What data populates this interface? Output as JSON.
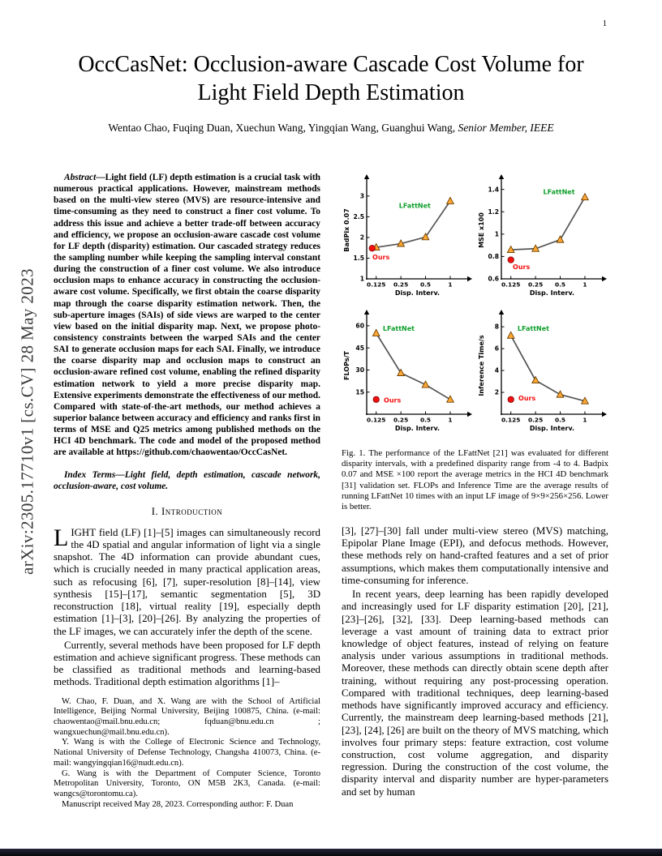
{
  "page_number": "1",
  "arxiv_label": "arXiv:2305.17710v1  [cs.CV]  28 May 2023",
  "header": {
    "title": "OccCasNet: Occlusion-aware Cascade Cost Volume for Light Field Depth Estimation",
    "authors": "Wentao Chao, Fuqing Duan, Xuechun Wang, Yingqian Wang, Guanghui Wang,",
    "authors_suffix": " Senior Member, IEEE"
  },
  "abstract": {
    "label": "Abstract",
    "text": "—Light field (LF) depth estimation is a crucial task with numerous practical applications. However, mainstream methods based on the multi-view stereo (MVS) are resource-intensive and time-consuming as they need to construct a finer cost volume. To address this issue and achieve a better trade-off between accuracy and efficiency, we propose an occlusion-aware cascade cost volume for LF depth (disparity) estimation. Our cascaded strategy reduces the sampling number while keeping the sampling interval constant during the construction of a finer cost volume. We also introduce occlusion maps to enhance accuracy in constructing the occlusion-aware cost volume. Specifically, we first obtain the coarse disparity map through the coarse disparity estimation network. Then, the sub-aperture images (SAIs) of side views are warped to the center view based on the initial disparity map. Next, we propose photo-consistency constraints between the warped SAIs and the center SAI to generate occlusion maps for each SAI. Finally, we introduce the coarse disparity map and occlusion maps to construct an occlusion-aware refined cost volume, enabling the refined disparity estimation network to yield a more precise disparity map. Extensive experiments demonstrate the effectiveness of our method. Compared with state-of-the-art methods, our method achieves a superior balance between accuracy and efficiency and ranks first in terms of MSE and Q25 metrics among published methods on the HCI 4D benchmark. The code and model of the proposed method are available at ",
    "link": "https://github.com/chaowentao/OccCasNet."
  },
  "index_terms": {
    "label": "Index Terms",
    "text": "—Light field, depth estimation, cascade network, occlusion-aware, cost volume."
  },
  "introduction": {
    "heading": "I. Introduction",
    "dropcap": "L",
    "para1": "IGHT field (LF) [1]–[5] images can simultaneously record the 4D spatial and angular information of light via a single snapshot. The 4D information can provide abundant cues, which is crucially needed in many practical application areas, such as refocusing [6], [7], super-resolution [8]–[14], view synthesis [15]–[17], semantic segmentation [5], 3D reconstruction [18], virtual reality [19], especially depth estimation [1]–[3], [20]–[26]. By analyzing the properties of the LF images, we can accurately infer the depth of the scene.",
    "para2": "Currently, several methods have been proposed for LF depth estimation and achieve significant progress. These methods can be classified as traditional methods and learning-based methods. Traditional depth estimation algorithms [1]–"
  },
  "right_column": {
    "para1": "[3], [27]–[30] fall under multi-view stereo (MVS) matching, Epipolar Plane Image (EPI), and defocus methods. However, these methods rely on hand-crafted features and a set of prior assumptions, which makes them computationally intensive and time-consuming for inference.",
    "para2": "In recent years, deep learning has been rapidly developed and increasingly used for LF disparity estimation [20], [21], [23]–[26], [32], [33]. Deep learning-based methods can leverage a vast amount of training data to extract prior knowledge of object features, instead of relying on feature analysis under various assumptions in traditional methods. Moreover, these methods can directly obtain scene depth after training, without requiring any post-processing operation. Compared with traditional techniques, deep learning-based methods have significantly improved accuracy and efficiency. Currently, the mainstream deep learning-based methods [21], [23], [24], [26] are built on the theory of MVS matching, which involves four primary steps: feature extraction, cost volume construction, cost volume aggregation, and disparity regression. During the construction of the cost volume, the disparity interval and disparity number are hyper-parameters and set by human"
  },
  "footnotes": [
    "W. Chao, F. Duan, and X. Wang are with the School of Artificial Intelligence, Beijing Normal University, Beijing 100875, China. (e-mail: chaowentao@mail.bnu.edu.cn; fqduan@bnu.edu.cn ; wangxuechun@mail.bnu.edu.cn).",
    "Y. Wang is with the College of Electronic Science and Technology, National University of Defense Technology, Changsha 410073, China. (e-mail: wangyingqian16@nudt.edu.cn).",
    "G. Wang is with the Department of Computer Science, Toronto Metropolitan University, Toronto, ON M5B 2K3, Canada. (e-mail: wangcs@torontomu.ca).",
    "Manuscript received May 28, 2023. Corresponding author: F. Duan"
  ],
  "figure": {
    "caption_label": "Fig. 1.",
    "caption_text": " The performance of the LFattNet [21] was evaluated for different disparity intervals, with a predefined disparity range from -4 to 4. Badpix 0.07 and MSE ×100 report the average metrics in the HCI 4D benchmark [31] validation set. FLOPs and Inference Time are the average results of running LFattNet 10 times with an input LF image of 9×9×256×256. Lower is better."
  },
  "chart_data": [
    {
      "type": "line",
      "ylabel": "BadPix 0.07",
      "xlabel": "Disp. Interv.",
      "x_ticks": [
        "0.125",
        "0.25",
        "0.5",
        "1"
      ],
      "y_ticks": [
        "1",
        "1.5",
        "2",
        "2.5",
        "3"
      ],
      "y_tick_values": [
        1,
        1.5,
        2,
        2.5,
        3
      ],
      "ylim": [
        1,
        3.35
      ],
      "grid": false,
      "legend": "inline-labels",
      "series": [
        {
          "name": "LFattNet",
          "color": "#0e9e2b",
          "marker": "triangle",
          "values": [
            1.76,
            1.85,
            2.01,
            2.88
          ],
          "label_pos": [
            0.34,
            0.27
          ]
        },
        {
          "name": "Ours",
          "color": "#f50f0f",
          "marker": "circle",
          "values": [
            1.74
          ],
          "point_index": 0,
          "dx": -5,
          "label_pos": [
            0.06,
            0.8
          ]
        }
      ]
    },
    {
      "type": "line",
      "ylabel": "MSE x100",
      "xlabel": "Disp. Interv.",
      "x_ticks": [
        "0.125",
        "0.25",
        "0.5",
        "1"
      ],
      "y_ticks": [
        "0.6",
        "0.8",
        "1",
        "1.2",
        "1.4"
      ],
      "y_tick_values": [
        0.6,
        0.8,
        1,
        1.2,
        1.4
      ],
      "ylim": [
        0.6,
        1.47
      ],
      "grid": false,
      "legend": "inline-labels",
      "series": [
        {
          "name": "LFattNet",
          "color": "#0e9e2b",
          "marker": "triangle",
          "values": [
            0.86,
            0.87,
            0.95,
            1.33
          ],
          "label_pos": [
            0.44,
            0.13
          ]
        },
        {
          "name": "Ours",
          "color": "#f50f0f",
          "marker": "circle",
          "values": [
            0.77
          ],
          "point_index": 0,
          "dx": 0,
          "label_pos": [
            0.12,
            0.9
          ]
        }
      ]
    },
    {
      "type": "line",
      "ylabel": "FLOPs/T",
      "xlabel": "Disp. Interv.",
      "x_ticks": [
        "0.125",
        "0.25",
        "0.5",
        "1"
      ],
      "y_ticks": [
        "15",
        "30",
        "45",
        "60"
      ],
      "y_tick_values": [
        15,
        30,
        45,
        60
      ],
      "ylim": [
        0,
        66
      ],
      "grid": false,
      "legend": "inline-labels",
      "series": [
        {
          "name": "LFattNet",
          "color": "#0e9e2b",
          "marker": "triangle",
          "values": [
            55,
            28,
            20,
            10
          ],
          "label_pos": [
            0.17,
            0.14
          ]
        },
        {
          "name": "Ours",
          "color": "#f50f0f",
          "marker": "circle",
          "values": [
            10
          ],
          "point_index": 0,
          "dx": 0,
          "label_pos": [
            0.18,
            0.88
          ]
        }
      ]
    },
    {
      "type": "line",
      "ylabel": "Inference Time/s",
      "xlabel": "Disp. Interv.",
      "x_ticks": [
        "0.125",
        "0.25",
        "0.5",
        "1"
      ],
      "y_ticks": [
        "2",
        "4",
        "6",
        "8"
      ],
      "y_tick_values": [
        2,
        4,
        6,
        8
      ],
      "ylim": [
        0,
        8.9
      ],
      "grid": false,
      "legend": "inline-labels",
      "series": [
        {
          "name": "LFattNet",
          "color": "#0e9e2b",
          "marker": "triangle",
          "values": [
            7.2,
            3.1,
            1.8,
            1.2
          ],
          "label_pos": [
            0.17,
            0.14
          ]
        },
        {
          "name": "Ours",
          "color": "#f50f0f",
          "marker": "circle",
          "values": [
            1.35
          ],
          "point_index": 0,
          "dx": 0,
          "label_pos": [
            0.18,
            0.86
          ]
        }
      ]
    }
  ]
}
